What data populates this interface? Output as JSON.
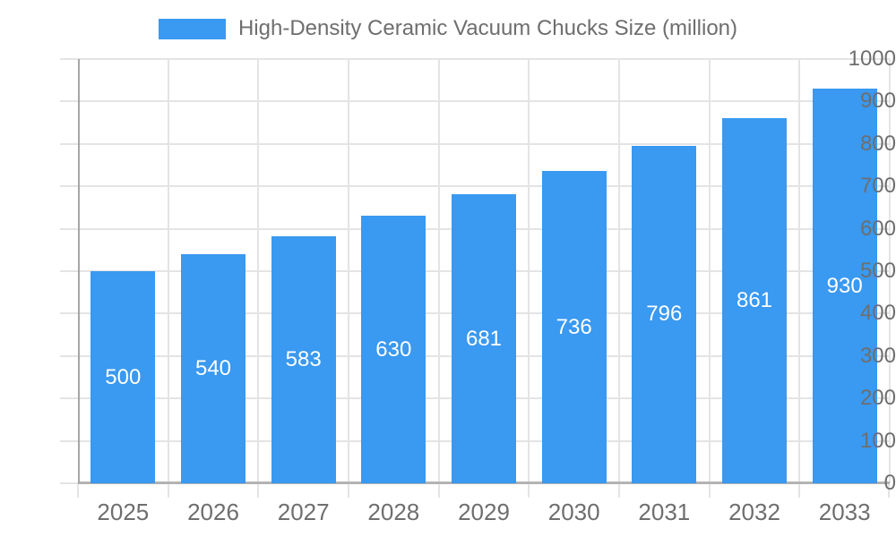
{
  "legend": {
    "label": "High-Density Ceramic Vacuum Chucks Size (million)"
  },
  "chart_data": {
    "type": "bar",
    "title": "High-Density Ceramic Vacuum Chucks Size (million)",
    "categories": [
      "2025",
      "2026",
      "2027",
      "2028",
      "2029",
      "2030",
      "2031",
      "2032",
      "2033"
    ],
    "series": [
      {
        "name": "High-Density Ceramic Vacuum Chucks Size (million)",
        "values": [
          500,
          540,
          583,
          630,
          681,
          736,
          796,
          861,
          930
        ]
      }
    ],
    "bar_labels": [
      "500",
      "540",
      "583",
      "630",
      "681",
      "736",
      "796",
      "861",
      "930"
    ],
    "xlabel": "",
    "ylabel": "",
    "ylim": [
      0,
      1000
    ],
    "ytick_interval": 100,
    "yticks": [
      "0",
      "100",
      "200",
      "300",
      "400",
      "500",
      "600",
      "700",
      "800",
      "900",
      "1000"
    ],
    "grid": true,
    "legend_position": "top",
    "colors": {
      "bar": "#3a99f0",
      "grid": "#e4e4e4",
      "axis_y_line": "#a6a6a6",
      "axis_x_line": "#b3b3b3",
      "axis_text": "#6e6e6e",
      "bar_label_text": "#ffffff",
      "background": "#ffffff"
    }
  }
}
